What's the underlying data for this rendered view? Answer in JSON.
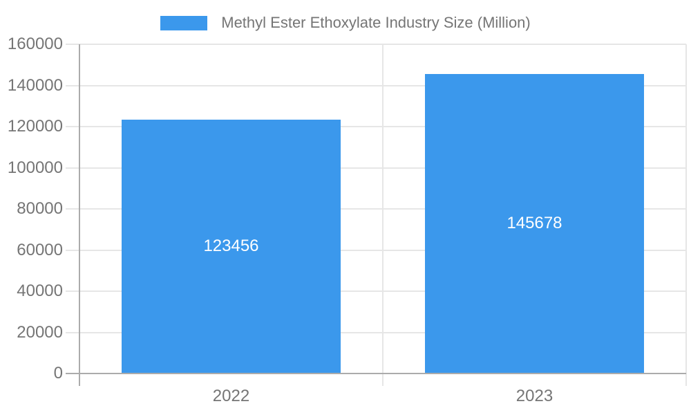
{
  "legend": {
    "label": "Methyl Ester Ethoxylate Industry Size (Million)"
  },
  "chart_data": {
    "type": "bar",
    "title": "Methyl Ester Ethoxylate Industry Size (Million)",
    "categories": [
      "2022",
      "2023"
    ],
    "values": [
      123456,
      145678
    ],
    "value_labels": [
      "123456",
      "145678"
    ],
    "xlabel": "",
    "ylabel": "",
    "ylim": [
      0,
      160000
    ],
    "yticks": [
      0,
      20000,
      40000,
      60000,
      80000,
      100000,
      120000,
      140000,
      160000
    ],
    "grid": true,
    "legend_position": "top-center",
    "bar_width_fraction": 0.72
  },
  "colors": {
    "bar": "#3B98EC",
    "gridline": "#E6E6E6",
    "axis_line": "#ABABAB",
    "text": "#757575",
    "value_label": "#FFFFFF",
    "background": "#FFFFFF"
  }
}
